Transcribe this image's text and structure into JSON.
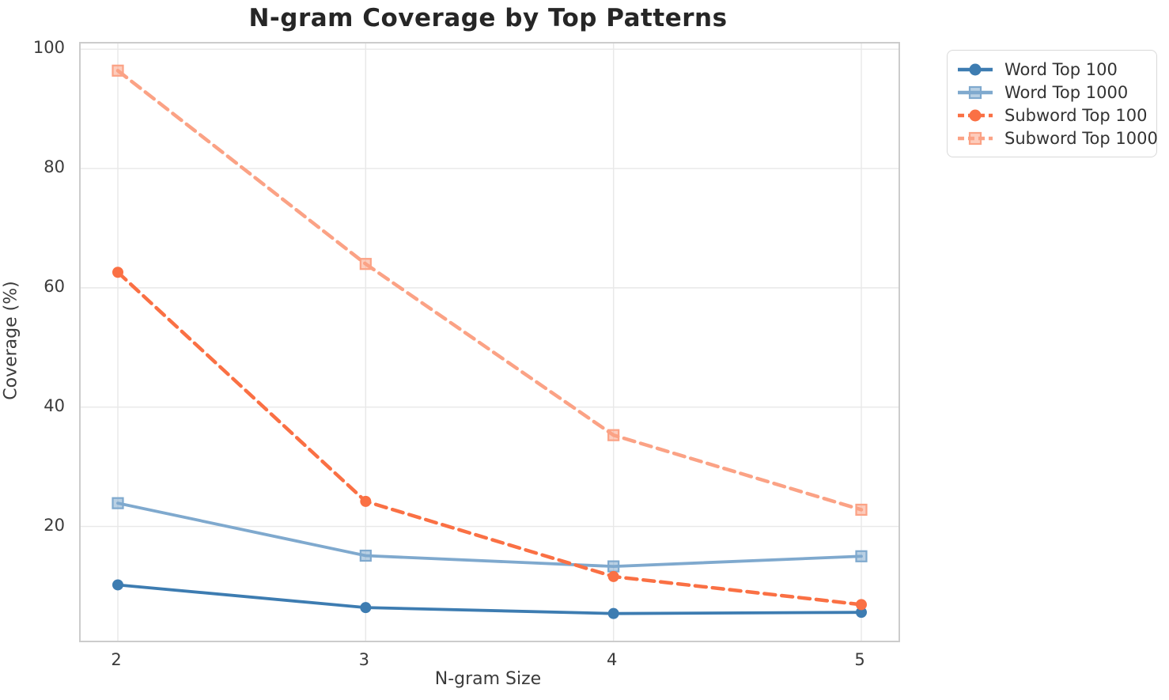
{
  "chart_data": {
    "type": "line",
    "title": "N-gram Coverage by Top Patterns",
    "xlabel": "N-gram Size",
    "ylabel": "Coverage (%)",
    "x": [
      2,
      3,
      4,
      5
    ],
    "xtick_labels": [
      "2",
      "3",
      "4",
      "5"
    ],
    "ytick_values": [
      20,
      40,
      60,
      80,
      100
    ],
    "ytick_labels": [
      "20",
      "40",
      "60",
      "80",
      "100"
    ],
    "xlim": [
      1.85,
      5.15
    ],
    "ylim": [
      0.85,
      100.95
    ],
    "grid": true,
    "legend_position": "outside upper right",
    "series": [
      {
        "name": "Word Top 100",
        "color": "#3d7cb1",
        "line_style": "solid",
        "marker": "circle",
        "values": [
          10.2,
          6.4,
          5.4,
          5.6
        ]
      },
      {
        "name": "Word Top 1000",
        "color": "#7fa9ce",
        "line_style": "solid",
        "marker": "square",
        "values": [
          23.9,
          15.1,
          13.3,
          15.0
        ]
      },
      {
        "name": "Subword Top 100",
        "color": "#fa7044",
        "line_style": "dashed",
        "marker": "circle",
        "values": [
          62.6,
          24.2,
          11.6,
          6.9
        ]
      },
      {
        "name": "Subword Top 1000",
        "color": "#fba285",
        "line_style": "dashed",
        "marker": "square",
        "values": [
          96.4,
          64.0,
          35.3,
          22.8
        ]
      }
    ]
  },
  "colors": {
    "grid": "#e8e8e8",
    "spine": "#cccccc",
    "tick_text": "#3b3b3b",
    "title_text": "#262626",
    "legend_border": "#d9d9d9",
    "background": "#ffffff"
  }
}
